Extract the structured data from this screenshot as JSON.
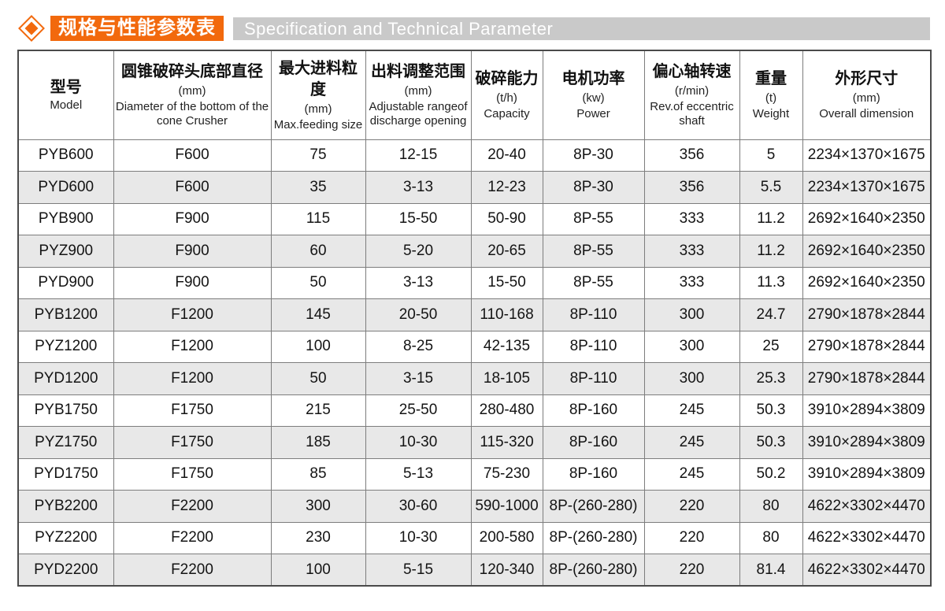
{
  "header": {
    "title_cn": "规格与性能参数表",
    "title_en": "Specification and Technical Parameter",
    "accent_color": "#F2690D",
    "bar_color": "#C9C9C9"
  },
  "table": {
    "columns": [
      {
        "cn": "型号",
        "sub": "",
        "en": "Model"
      },
      {
        "cn": "圆锥破碎头底部直径",
        "sub": "(mm)",
        "en": "Diameter of the bottom of the cone Crusher"
      },
      {
        "cn": "最大进料粒度",
        "sub": "(mm)",
        "en": "Max.feeding size"
      },
      {
        "cn": "出料调整范围",
        "sub": "(mm)",
        "en": "Adjustable rangeof discharge opening"
      },
      {
        "cn": "破碎能力",
        "sub": "(t/h)",
        "en": "Capacity"
      },
      {
        "cn": "电机功率",
        "sub": "(kw)",
        "en": "Power"
      },
      {
        "cn": "偏心轴转速",
        "sub": "(r/min)",
        "en": "Rev.of eccentric shaft"
      },
      {
        "cn": "重量",
        "sub": "(t)",
        "en": "Weight"
      },
      {
        "cn": "外形尺寸",
        "sub": "(mm)",
        "en": "Overall dimension"
      }
    ],
    "rows": [
      [
        "PYB600",
        "F600",
        "75",
        "12-15",
        "20-40",
        "8P-30",
        "356",
        "5",
        "2234×1370×1675"
      ],
      [
        "PYD600",
        "F600",
        "35",
        "3-13",
        "12-23",
        "8P-30",
        "356",
        "5.5",
        "2234×1370×1675"
      ],
      [
        "PYB900",
        "F900",
        "115",
        "15-50",
        "50-90",
        "8P-55",
        "333",
        "11.2",
        "2692×1640×2350"
      ],
      [
        "PYZ900",
        "F900",
        "60",
        "5-20",
        "20-65",
        "8P-55",
        "333",
        "11.2",
        "2692×1640×2350"
      ],
      [
        "PYD900",
        "F900",
        "50",
        "3-13",
        "15-50",
        "8P-55",
        "333",
        "11.3",
        "2692×1640×2350"
      ],
      [
        "PYB1200",
        "F1200",
        "145",
        "20-50",
        "110-168",
        "8P-110",
        "300",
        "24.7",
        "2790×1878×2844"
      ],
      [
        "PYZ1200",
        "F1200",
        "100",
        "8-25",
        "42-135",
        "8P-110",
        "300",
        "25",
        "2790×1878×2844"
      ],
      [
        "PYD1200",
        "F1200",
        "50",
        "3-15",
        "18-105",
        "8P-110",
        "300",
        "25.3",
        "2790×1878×2844"
      ],
      [
        "PYB1750",
        "F1750",
        "215",
        "25-50",
        "280-480",
        "8P-160",
        "245",
        "50.3",
        "3910×2894×3809"
      ],
      [
        "PYZ1750",
        "F1750",
        "185",
        "10-30",
        "115-320",
        "8P-160",
        "245",
        "50.3",
        "3910×2894×3809"
      ],
      [
        "PYD1750",
        "F1750",
        "85",
        "5-13",
        "75-230",
        "8P-160",
        "245",
        "50.2",
        "3910×2894×3809"
      ],
      [
        "PYB2200",
        "F2200",
        "300",
        "30-60",
        "590-1000",
        "8P-(260-280)",
        "220",
        "80",
        "4622×3302×4470"
      ],
      [
        "PYZ2200",
        "F2200",
        "230",
        "10-30",
        "200-580",
        "8P-(260-280)",
        "220",
        "80",
        "4622×3302×4470"
      ],
      [
        "PYD2200",
        "F2200",
        "100",
        "5-15",
        "120-340",
        "8P-(260-280)",
        "220",
        "81.4",
        "4622×3302×4470"
      ]
    ]
  }
}
